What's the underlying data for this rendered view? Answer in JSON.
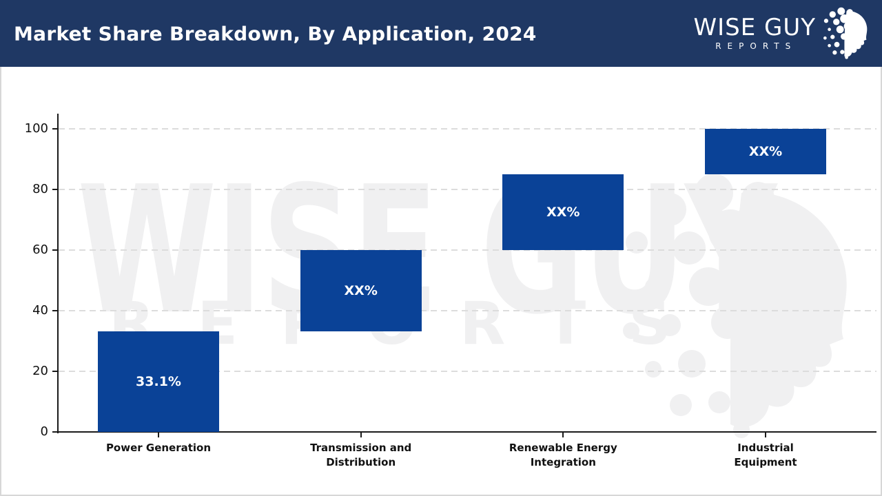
{
  "header": {
    "title": "Market Share Breakdown, By Application, 2024",
    "brand": {
      "name": "WISE GUY",
      "subtitle": "REPORTS"
    },
    "colors": {
      "background": "#1f3864",
      "text": "#ffffff"
    }
  },
  "watermark": {
    "line1": "WISE GUY",
    "line2": "REPORTS",
    "color": "#f0f0f1",
    "head_icon": "face-profile-dots-icon"
  },
  "chart_data": {
    "type": "bar",
    "variant": "waterfall",
    "title": "Market Share Breakdown, By Application, 2024",
    "categories": [
      "Power Generation",
      "Transmission and\nDistribution",
      "Renewable Energy\nIntegration",
      "Industrial\nEquipment"
    ],
    "bar_labels": [
      "33.1%",
      "XX%",
      "XX%",
      "XX%"
    ],
    "segments": [
      [
        0,
        33.1
      ],
      [
        33.1,
        60
      ],
      [
        60,
        85
      ],
      [
        85,
        100
      ]
    ],
    "values": [
      33.1,
      26.9,
      25.0,
      15.0
    ],
    "yticks": [
      0,
      20,
      40,
      60,
      80,
      100
    ],
    "ylim": [
      0,
      100
    ],
    "xlabel": "",
    "ylabel": "",
    "grid": "horizontal-dashed",
    "legend": "none",
    "bar_color": "#0a4297",
    "bar_label_color": "#ffffff",
    "axis_color": "#1a1a1a",
    "gridline_color": "#dcdcdc"
  }
}
